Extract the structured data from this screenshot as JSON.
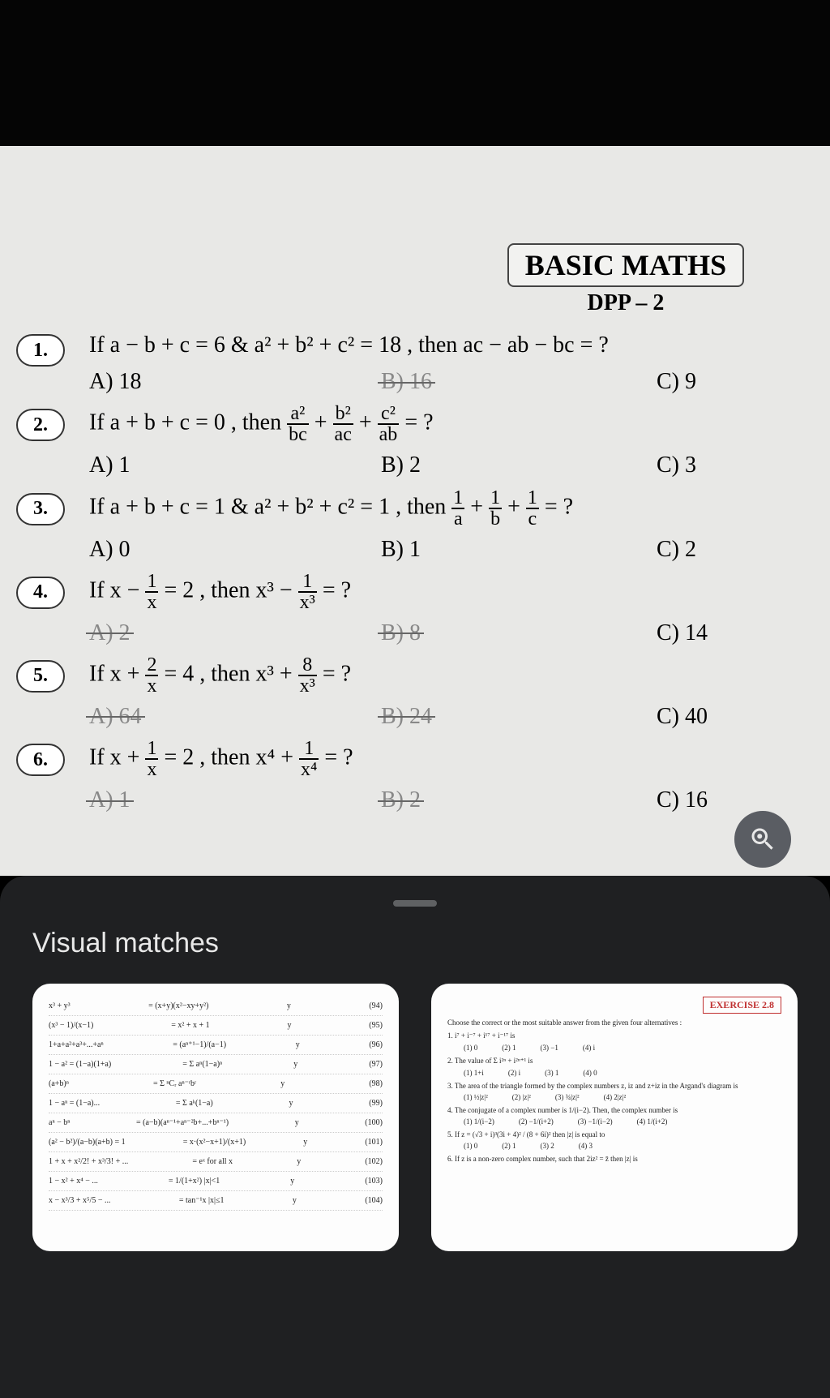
{
  "header": {
    "title": "BASIC MATHS",
    "subtitle": "DPP – 2"
  },
  "questions": [
    {
      "n": "1.",
      "q": "If a − b + c = 6  &  a² + b² + c² = 18 , then  ac − ab − bc = ?",
      "a": "A) 18",
      "b": "B) 16",
      "c": "C) 9",
      "bstrike": true
    },
    {
      "n": "2.",
      "q": "If a + b + c = 0 , then  <span class='frac'><span class='fn'>a²</span><span class='fd'>bc</span></span> + <span class='frac'><span class='fn'>b²</span><span class='fd'>ac</span></span> + <span class='frac'><span class='fn'>c²</span><span class='fd'>ab</span></span> = ?",
      "a": "A) 1",
      "b": "B) 2",
      "c": "C) 3"
    },
    {
      "n": "3.",
      "q": "If a + b + c = 1  &  a² + b² + c² = 1 , then  <span class='frac'><span class='fn'>1</span><span class='fd'>a</span></span> + <span class='frac'><span class='fn'>1</span><span class='fd'>b</span></span> + <span class='frac'><span class='fn'>1</span><span class='fd'>c</span></span> = ?",
      "a": "A) 0",
      "b": "B) 1",
      "c": "C) 2"
    },
    {
      "n": "4.",
      "q": "If  x − <span class='frac'><span class='fn'>1</span><span class='fd'>x</span></span> = 2 , then  x³ − <span class='frac'><span class='fn'>1</span><span class='fd'>x³</span></span> = ?",
      "a": "A) 2",
      "b": "B) 8",
      "c": "C) 14",
      "astrike": true,
      "bstrike": true
    },
    {
      "n": "5.",
      "q": "If  x + <span class='frac'><span class='fn'>2</span><span class='fd'>x</span></span> = 4 , then  x³ + <span class='frac'><span class='fn'>8</span><span class='fd'>x³</span></span> = ?",
      "a": "A) 64",
      "b": "B) 24",
      "c": "C) 40",
      "astrike": true,
      "bstrike": true
    },
    {
      "n": "6.",
      "q": "If  x + <span class='frac'><span class='fn'>1</span><span class='fd'>x</span></span> = 2 , then  x⁴ + <span class='frac'><span class='fn'>1</span><span class='fd'>x⁴</span></span> = ?",
      "a": "A) 1",
      "b": "B) 2",
      "c": "C) 16",
      "astrike": true,
      "bstrike": true
    }
  ],
  "panel": {
    "title": "Visual matches"
  },
  "thumb2": {
    "ex": "EXERCISE 2.8",
    "hd": "Choose the correct or the most suitable answer from the given four alternatives :",
    "l1": "1. i⁷ + i⁻⁷ + i¹⁷ + i⁻¹⁷ is",
    "o1a": "(1) 0",
    "o1b": "(2) 1",
    "o1c": "(3) −1",
    "o1d": "(4) i",
    "l2": "2. The value of Σ i²ⁿ + i²ⁿ⁺¹ is",
    "o2a": "(1) 1+i",
    "o2b": "(2) i",
    "o2c": "(3) 1",
    "o2d": "(4) 0",
    "l3": "3. The area of the triangle formed by the complex numbers z, iz  and z+iz in the Argand's diagram is",
    "o3a": "(1) ½|z|²",
    "o3b": "(2) |z|²",
    "o3c": "(3) ¾|z|²",
    "o3d": "(4) 2|z|²",
    "l4": "4. The conjugate of a complex number is 1/(i−2). Then, the complex number is",
    "o4a": "(1) 1/(i−2)",
    "o4b": "(2) −1/(i+2)",
    "o4c": "(3) −1/(i−2)",
    "o4d": "(4) 1/(i+2)",
    "l5": "5. If z = (√3 + i)³(3i + 4)² / (8 + 6i)²  then |z| is equal to",
    "o5a": "(1) 0",
    "o5b": "(2) 1",
    "o5c": "(3) 2",
    "o5d": "(4) 3",
    "l6": "6. If z is a non-zero complex number, such that  2iz² = z̄  then |z| is"
  }
}
